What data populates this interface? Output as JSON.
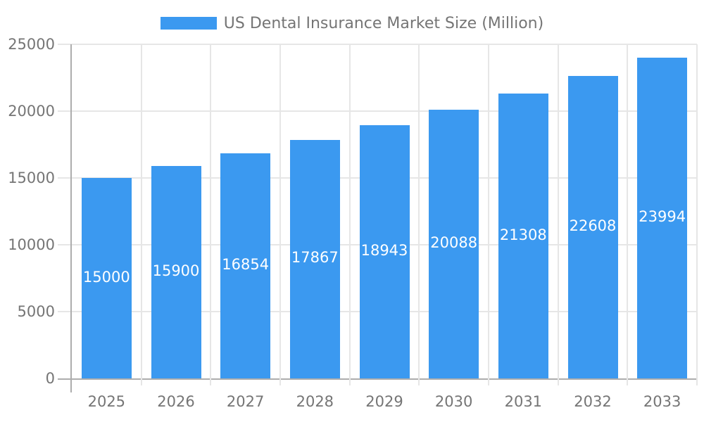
{
  "legend": {
    "label": "US Dental Insurance Market Size (Million)"
  },
  "chart_data": {
    "type": "bar",
    "title": "US Dental Insurance Market Size (Million)",
    "series_name": "US Dental Insurance Market Size (Million)",
    "categories": [
      "2025",
      "2026",
      "2027",
      "2028",
      "2029",
      "2030",
      "2031",
      "2032",
      "2033"
    ],
    "values": [
      15000,
      15900,
      16854,
      17867,
      18943,
      20088,
      21308,
      22608,
      23994
    ],
    "bar_value_labels": [
      "15000",
      "15900",
      "16854",
      "17867",
      "18943",
      "20088",
      "21308",
      "22608",
      "23994"
    ],
    "xlabel": "",
    "ylabel": "",
    "ylim": [
      0,
      25000
    ],
    "yticks": [
      0,
      5000,
      10000,
      15000,
      20000,
      25000
    ],
    "ytick_labels": [
      "0",
      "5000",
      "10000",
      "15000",
      "20000",
      "25000"
    ],
    "grid": true,
    "legend_position": "top-center",
    "value_label_position": "inside-center"
  },
  "colors": {
    "bar": "#3b99f0",
    "bar_label_text": "#ffffff",
    "axis_text": "#757575",
    "legend_text": "#757575",
    "grid_line": "#e6e6e6",
    "axis_line": "#adadad",
    "background": "#ffffff"
  }
}
